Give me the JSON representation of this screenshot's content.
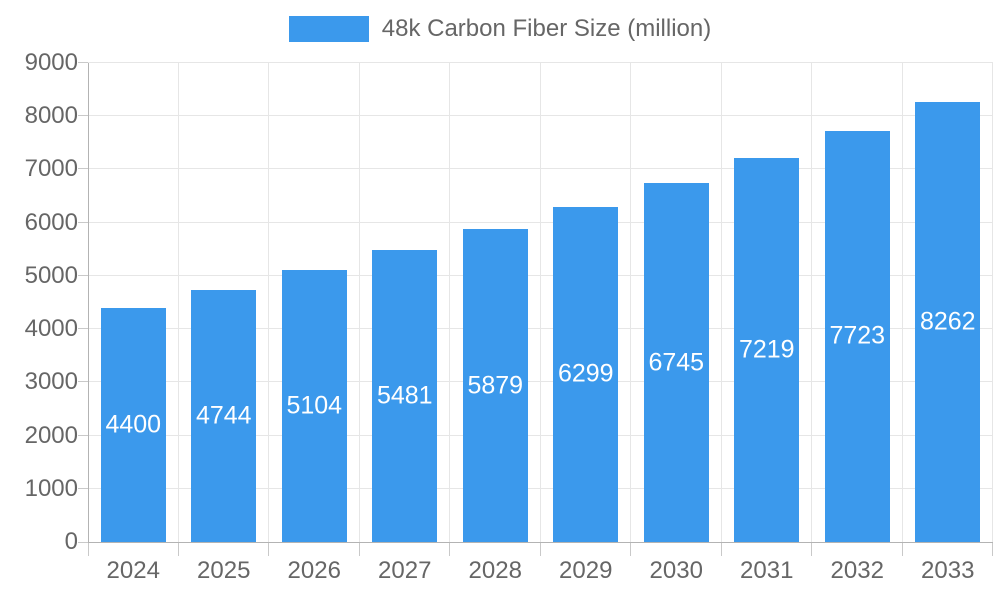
{
  "page": {
    "background": "#ffffff"
  },
  "chart_data": {
    "type": "bar",
    "title": "",
    "legend_entries": [
      "48k Carbon Fiber Size (million)"
    ],
    "legend_position": "top",
    "categories": [
      "2024",
      "2025",
      "2026",
      "2027",
      "2028",
      "2029",
      "2030",
      "2031",
      "2032",
      "2033"
    ],
    "series": [
      {
        "name": "48k Carbon Fiber Size (million)",
        "values": [
          4400,
          4744,
          5104,
          5481,
          5879,
          6299,
          6745,
          7219,
          7723,
          8262
        ]
      }
    ],
    "data_labels": [
      "4400",
      "4744",
      "5104",
      "5481",
      "5879",
      "6299",
      "6745",
      "7219",
      "7723",
      "8262"
    ],
    "xlabel": "",
    "ylabel": "",
    "ylim": [
      0,
      9000
    ],
    "ytick_step": 1000,
    "yticks": [
      "0",
      "1000",
      "2000",
      "3000",
      "4000",
      "5000",
      "6000",
      "7000",
      "8000",
      "9000"
    ],
    "grid": true,
    "colors": {
      "bar": "#3b99ec",
      "grid": "#e6e6e6",
      "axis_line": "#b3b3b3",
      "tick": "#c9c9c9",
      "text": "#666666",
      "data_label": "#ffffff"
    }
  }
}
